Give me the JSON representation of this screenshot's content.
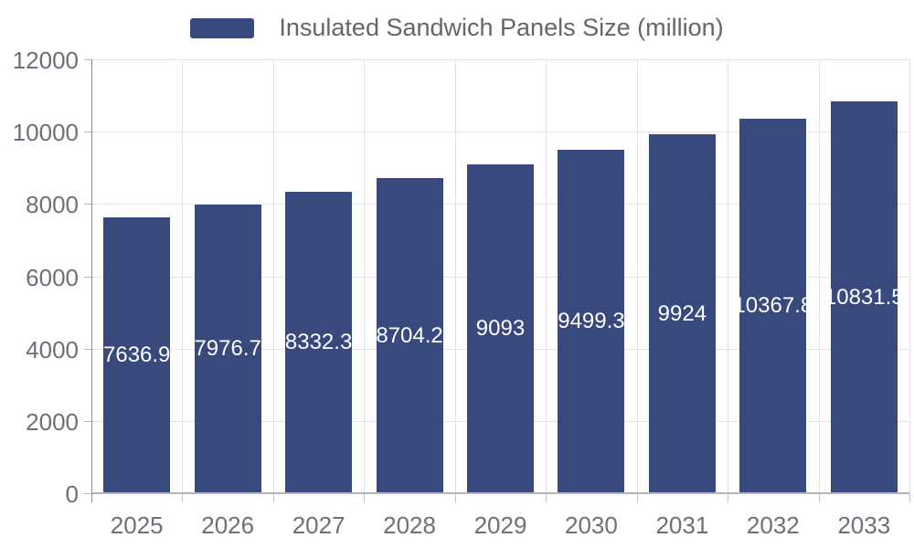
{
  "legend": {
    "label": "Insulated Sandwich Panels Size (million)"
  },
  "chart_data": {
    "type": "bar",
    "title": "Insulated Sandwich Panels Size (million)",
    "series_name": "Insulated Sandwich Panels Size (million)",
    "categories": [
      "2025",
      "2026",
      "2027",
      "2028",
      "2029",
      "2030",
      "2031",
      "2032",
      "2033"
    ],
    "values": [
      7636.9,
      7976.7,
      8332.3,
      8704.2,
      9093,
      9499.3,
      9924,
      10367.8,
      10831.5
    ],
    "value_labels": [
      "7636.9",
      "7976.7",
      "8332.3",
      "8704.2",
      "9093",
      "9499.3",
      "9924",
      "10367.8",
      "10831.5"
    ],
    "xlabel": "",
    "ylabel": "",
    "ylim": [
      0,
      12000
    ],
    "yticks": [
      0,
      2000,
      4000,
      6000,
      8000,
      10000,
      12000
    ],
    "grid": true,
    "legend_position": "top-center",
    "value_labels_position": "inside-center",
    "colors": {
      "bar": "#38497e",
      "value_label": "#ffffff",
      "axis_text": "#6e7079",
      "legend_text": "#666666",
      "grid_line": "#e4e4e8"
    }
  }
}
